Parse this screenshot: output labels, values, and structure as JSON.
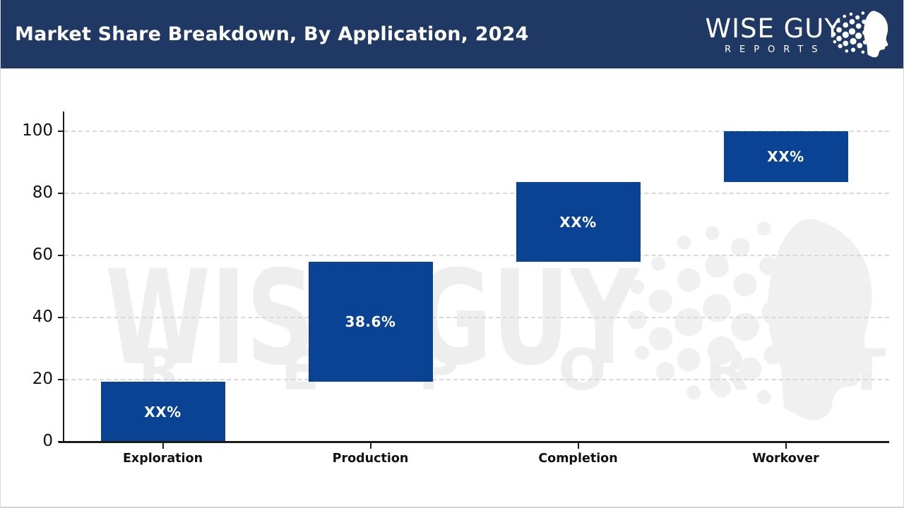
{
  "header": {
    "title": "Market Share Breakdown, By Application, 2024",
    "background": "#1f3864",
    "logo": {
      "wordmark": "WISE GUY",
      "subtext": "REPORTS"
    }
  },
  "watermark": {
    "wordmark": "WISE GUY",
    "subtext": "R E P O R T S"
  },
  "chart_data": {
    "type": "bar",
    "variant": "floating-waterfall",
    "title": "Market Share Breakdown, By Application, 2024",
    "categories": [
      "Exploration",
      "Production",
      "Completion",
      "Workover"
    ],
    "segments": [
      {
        "category": "Exploration",
        "start": 0,
        "end": 19.3,
        "label": "XX%"
      },
      {
        "category": "Production",
        "start": 19.3,
        "end": 57.9,
        "label": "38.6%"
      },
      {
        "category": "Completion",
        "start": 57.9,
        "end": 83.6,
        "label": "XX%"
      },
      {
        "category": "Workover",
        "start": 83.6,
        "end": 100,
        "label": "XX%"
      }
    ],
    "ylim": [
      0,
      100
    ],
    "yticks": [
      0,
      20,
      40,
      60,
      80,
      100
    ],
    "xlabel": "",
    "ylabel": "",
    "grid": {
      "horizontal": true,
      "style": "dashed",
      "color": "#d8d8d8"
    },
    "legend": "none",
    "bar_color": "#0a4294",
    "bar_label_color": "#ffffff",
    "axis_color": "#1a1a1a"
  }
}
